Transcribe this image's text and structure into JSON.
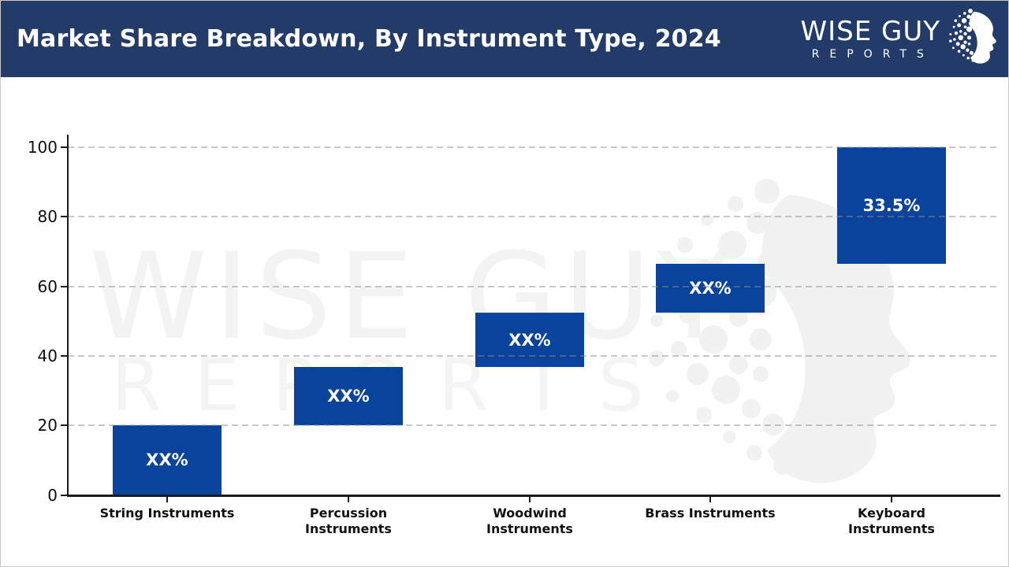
{
  "header": {
    "title": "Market Share Breakdown, By Instrument Type, 2024",
    "logo": {
      "line1": "WISE GUY",
      "line2": "REPORTS",
      "head_icon": "dotted-head-profile"
    },
    "bg_color": "#223b69"
  },
  "watermark": {
    "line1": "WISE GUY",
    "line2": "R E P O R T S"
  },
  "chart_data": {
    "type": "bar",
    "subtype": "waterfall",
    "title": "Market Share Breakdown, By Instrument Type, 2024",
    "categories": [
      "String Instruments",
      "Percussion Instruments",
      "Woodwind Instruments",
      "Brass Instruments",
      "Keyboard Instruments"
    ],
    "category_tick_labels": [
      "String Instruments",
      "Percussion\nInstruments",
      "Woodwind\nInstruments",
      "Brass Instruments",
      "Keyboard\nInstruments"
    ],
    "segments": [
      {
        "category": "String Instruments",
        "start": 0,
        "end": 20,
        "label": "XX%"
      },
      {
        "category": "Percussion Instruments",
        "start": 20,
        "end": 36.8,
        "label": "XX%"
      },
      {
        "category": "Woodwind Instruments",
        "start": 36.8,
        "end": 52.4,
        "label": "XX%"
      },
      {
        "category": "Brass Instruments",
        "start": 52.4,
        "end": 66.5,
        "label": "XX%"
      },
      {
        "category": "Keyboard Instruments",
        "start": 66.5,
        "end": 100,
        "label": "33.5%"
      }
    ],
    "yticks": [
      "0",
      "20",
      "40",
      "60",
      "80",
      "100"
    ],
    "ylim": [
      0,
      104
    ],
    "grid": "horizontal dashed, drawn over bars",
    "legend": "none",
    "bar_color": "#0a439b",
    "axis_color": "#1a1a1a",
    "label_color_inside_bars": "#ffffff"
  }
}
